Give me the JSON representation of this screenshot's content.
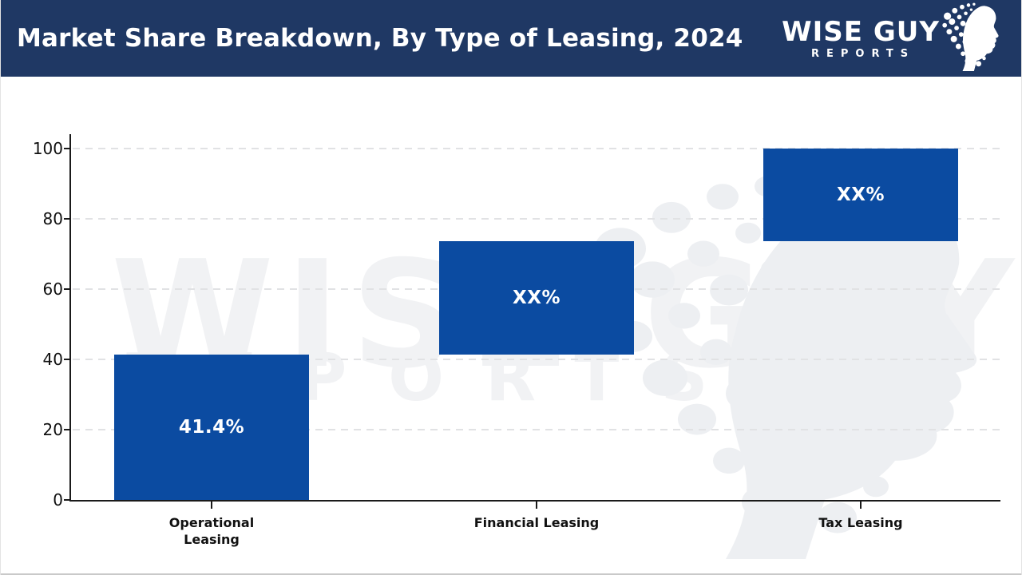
{
  "header": {
    "title": "Market Share Breakdown, By Type of Leasing, 2024",
    "logo": {
      "line1": "WISE GUY",
      "line2": "REPORTS"
    }
  },
  "watermark": {
    "line1": "WISE GUY",
    "line2": "REPORTS"
  },
  "colors": {
    "header_bg": "#1f3864",
    "bar_fill": "#0b4ba1",
    "grid": "#e1e2e4",
    "axis": "#1a1a1a",
    "value_label": "#ffffff",
    "watermark": "#f1f2f4"
  },
  "chart_data": {
    "type": "bar",
    "subtype": "stacked-waterfall",
    "title": "Market Share Breakdown, By Type of Leasing, 2024",
    "categories": [
      "Operational Leasing",
      "Financial Leasing",
      "Tax Leasing"
    ],
    "categories_lines": [
      [
        "Operational",
        "Leasing"
      ],
      [
        "Financial Leasing"
      ],
      [
        "Tax Leasing"
      ]
    ],
    "segments": [
      {
        "category": "Operational Leasing",
        "start": 0,
        "end": 41.4,
        "label": "41.4%"
      },
      {
        "category": "Financial Leasing",
        "start": 41.4,
        "end": 73.6,
        "label": "XX%"
      },
      {
        "category": "Tax Leasing",
        "start": 73.6,
        "end": 100,
        "label": "XX%"
      }
    ],
    "xlabel": "",
    "ylabel": "",
    "ylim": [
      0,
      100
    ],
    "yticks": [
      0,
      20,
      40,
      60,
      80,
      100
    ],
    "grid": "horizontal-dashed",
    "legend": "none"
  }
}
